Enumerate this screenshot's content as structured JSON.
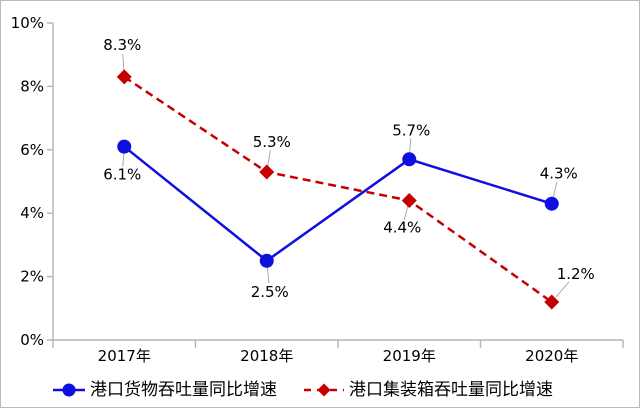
{
  "window": {
    "background": "#ffffff",
    "border_color": "#b9b9b9"
  },
  "chart_data": {
    "type": "line",
    "title": "",
    "xlabel": "",
    "ylabel": "",
    "categories": [
      "2017年",
      "2018年",
      "2019年",
      "2020年"
    ],
    "series": [
      {
        "name": "港口货物吞吐量同比增速",
        "values": [
          6.1,
          2.5,
          5.7,
          4.3
        ],
        "data_labels": [
          "6.1%",
          "2.5%",
          "5.7%",
          "4.3%"
        ],
        "color": "#0f0fe0",
        "line_style": "solid",
        "marker": "circle",
        "label_offsets": [
          [
            -2,
            28
          ],
          [
            3,
            31
          ],
          [
            2,
            -29
          ],
          [
            7,
            -30
          ]
        ]
      },
      {
        "name": "港口集装箱吞吐量同比增速",
        "values": [
          8.3,
          5.3,
          4.4,
          1.2
        ],
        "data_labels": [
          "8.3%",
          "5.3%",
          "4.4%",
          "1.2%"
        ],
        "color": "#c40000",
        "line_style": "dashed",
        "marker": "diamond",
        "label_offsets": [
          [
            -2,
            -32
          ],
          [
            5,
            -30
          ],
          [
            -7,
            27
          ],
          [
            24,
            -28
          ]
        ]
      }
    ],
    "ylim": [
      0,
      10
    ],
    "ytick_step": 2,
    "ytick_labels": [
      "0%",
      "2%",
      "4%",
      "6%",
      "8%",
      "10%"
    ],
    "grid": false,
    "legend_position": "bottom",
    "axis_color": "#b5b5b5",
    "leader_line_color": "#a9a9a9",
    "text_color": "#000000"
  }
}
